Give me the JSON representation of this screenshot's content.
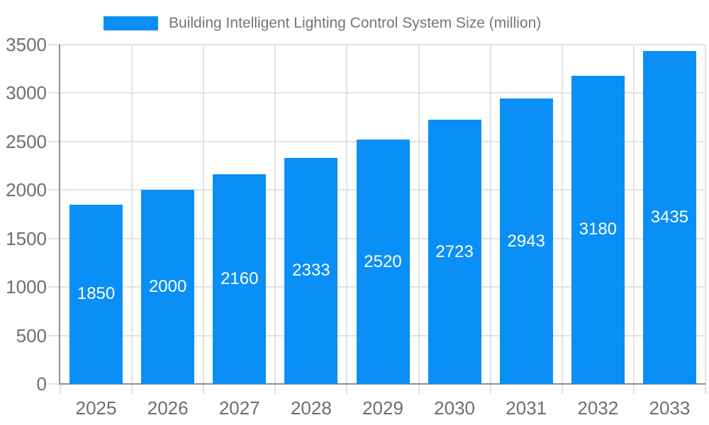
{
  "legend": {
    "label": "Building Intelligent Lighting Control System Size (million)"
  },
  "chart_data": {
    "type": "bar",
    "title": "Building Intelligent Lighting Control System Size (million)",
    "categories": [
      "2025",
      "2026",
      "2027",
      "2028",
      "2029",
      "2030",
      "2031",
      "2032",
      "2033"
    ],
    "values": [
      1850,
      2000,
      2160,
      2333,
      2520,
      2723,
      2943,
      3180,
      3435
    ],
    "xlabel": "",
    "ylabel": "",
    "ylim": [
      0,
      3500
    ],
    "yticks": [
      0,
      500,
      1000,
      1500,
      2000,
      2500,
      3000,
      3500
    ],
    "grid": true,
    "legend_position": "top",
    "colors": {
      "bar": "#0A8FF7",
      "bar_value_label": "#FFFFFF",
      "axis_line": "#8F8F8F",
      "gridline": "#E2E2E2",
      "tick_label": "#6E6E6E",
      "legend_text": "#757575",
      "background": "#FFFFFF"
    }
  }
}
